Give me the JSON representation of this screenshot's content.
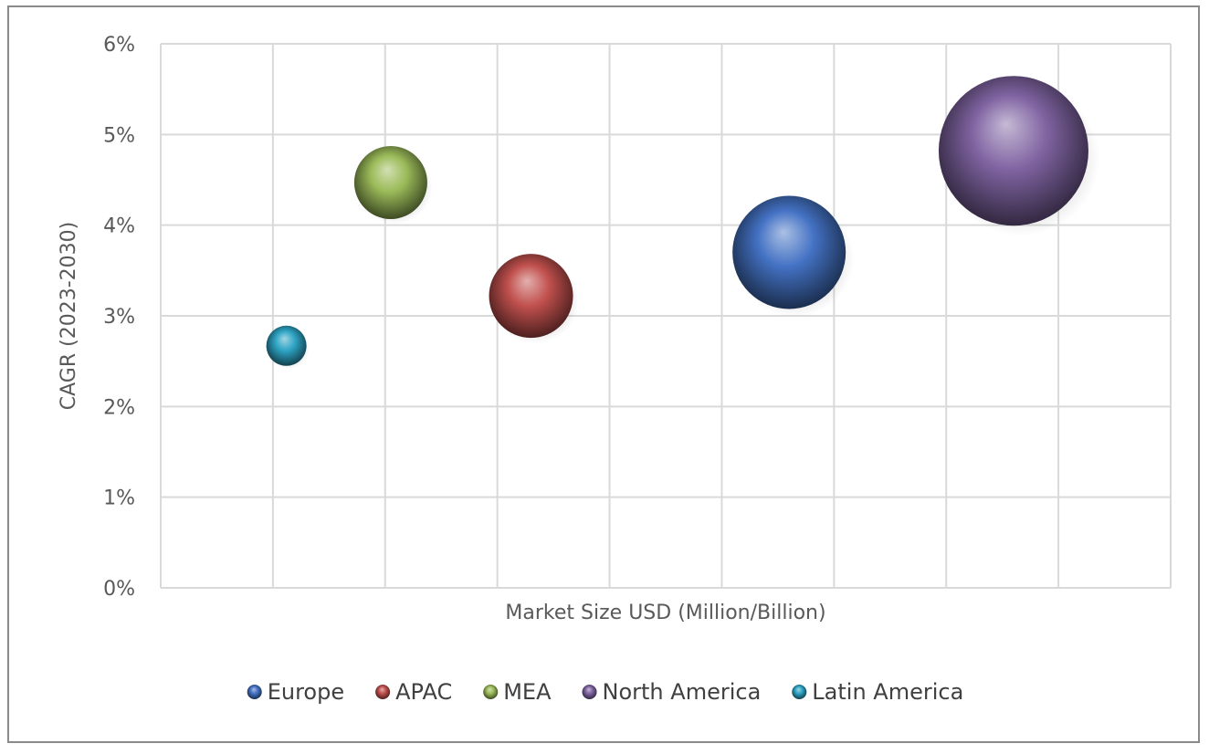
{
  "chart_data": {
    "type": "scatter",
    "subtype": "bubble",
    "title": "",
    "xlabel": "Market Size USD (Million/Billion)",
    "ylabel": "CAGR (2023-2030)",
    "x_tick_labels": [],
    "x_range": [
      0,
      9
    ],
    "x_gridlines": [
      1,
      2,
      3,
      4,
      5,
      6,
      7,
      8
    ],
    "ylim": [
      0,
      6
    ],
    "y_ticks": [
      0,
      1,
      2,
      3,
      4,
      5,
      6
    ],
    "y_tick_labels": [
      "0%",
      "1%",
      "2%",
      "3%",
      "4%",
      "5%",
      "6%"
    ],
    "grid": true,
    "legend_position": "bottom",
    "series": [
      {
        "name": "Europe",
        "x": 5.6,
        "y": 3.7,
        "size": 62,
        "color": "#4472c4"
      },
      {
        "name": "APAC",
        "x": 3.3,
        "y": 3.22,
        "size": 46,
        "color": "#c0504d"
      },
      {
        "name": "MEA",
        "x": 2.05,
        "y": 4.47,
        "size": 40,
        "color": "#9bbb59"
      },
      {
        "name": "North America",
        "x": 7.6,
        "y": 4.82,
        "size": 82,
        "color": "#8064a2"
      },
      {
        "name": "Latin America",
        "x": 1.12,
        "y": 2.67,
        "size": 22,
        "color": "#2ea3c4"
      }
    ]
  }
}
